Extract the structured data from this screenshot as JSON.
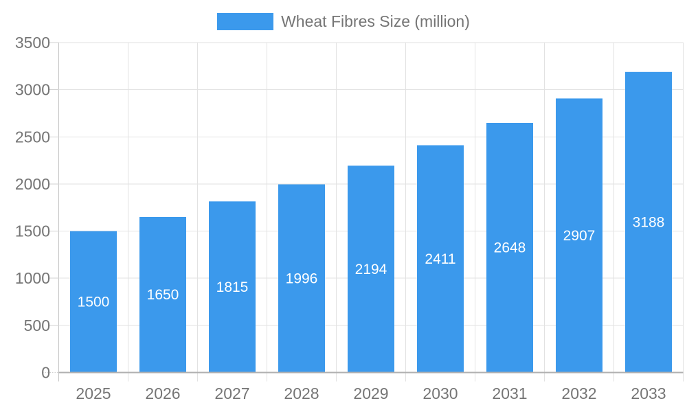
{
  "chart_data": {
    "type": "bar",
    "title": "Wheat Fibres Size (million)",
    "legend_label": "Wheat Fibres Size (million)",
    "legend_position": "top",
    "categories": [
      "2025",
      "2026",
      "2027",
      "2028",
      "2029",
      "2030",
      "2031",
      "2032",
      "2033"
    ],
    "series": [
      {
        "name": "Wheat Fibres Size (million)",
        "values": [
          1500,
          1650,
          1815,
          1996,
          2194,
          2411,
          2648,
          2907,
          3188
        ]
      }
    ],
    "bar_value_labels": [
      "1500",
      "1650",
      "1815",
      "1996",
      "2194",
      "2411",
      "2648",
      "2907",
      "3188"
    ],
    "xlabel": "",
    "ylabel": "",
    "ylim": [
      0,
      3500
    ],
    "ytick_step": 500,
    "ytick_labels": [
      "0",
      "500",
      "1000",
      "1500",
      "2000",
      "2500",
      "3000",
      "3500"
    ],
    "grid": true,
    "colors": {
      "bar": "#3B99EC",
      "bar_value_text": "#FFFFFF",
      "axis_text": "#757575",
      "gridline": "#E2E2E2",
      "axis_line": "#C4C4C4",
      "baseline": "#B0B0B0",
      "tick": "#D0D0D0",
      "background": "#FFFFFF"
    }
  }
}
